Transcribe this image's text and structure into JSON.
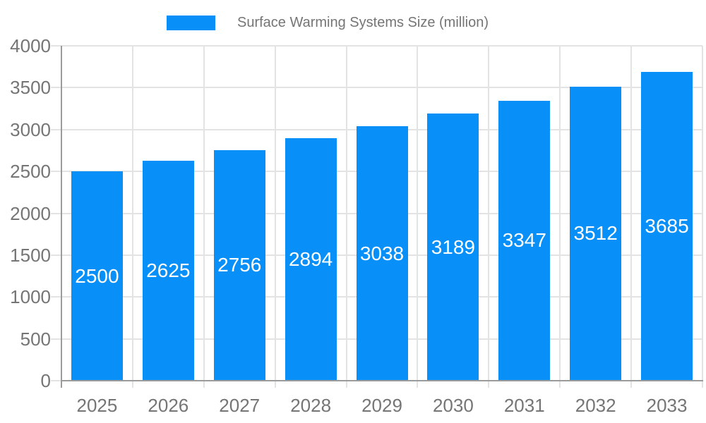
{
  "chart_data": {
    "type": "bar",
    "title": "Surface Warming Systems Size (million)",
    "categories": [
      "2025",
      "2026",
      "2027",
      "2028",
      "2029",
      "2030",
      "2031",
      "2032",
      "2033"
    ],
    "values": [
      2500,
      2625,
      2756,
      2894,
      3038,
      3189,
      3347,
      3512,
      3685
    ],
    "bar_labels": [
      "2500",
      "2625",
      "2756",
      "2894",
      "3038",
      "3189",
      "3347",
      "3512",
      "3685"
    ],
    "xlabel": "",
    "ylabel": "",
    "ylim": [
      0,
      4000
    ],
    "yticks": [
      0,
      500,
      1000,
      1500,
      2000,
      2500,
      3000,
      3500,
      4000
    ],
    "grid": true,
    "legend_position": "top",
    "colors": {
      "bar": "#0890f8",
      "grid": "#e3e3e3",
      "axis_line": "#9b9b9b",
      "axis_text": "#757575",
      "bar_label_text": "#ffffff",
      "background": "#ffffff"
    }
  }
}
